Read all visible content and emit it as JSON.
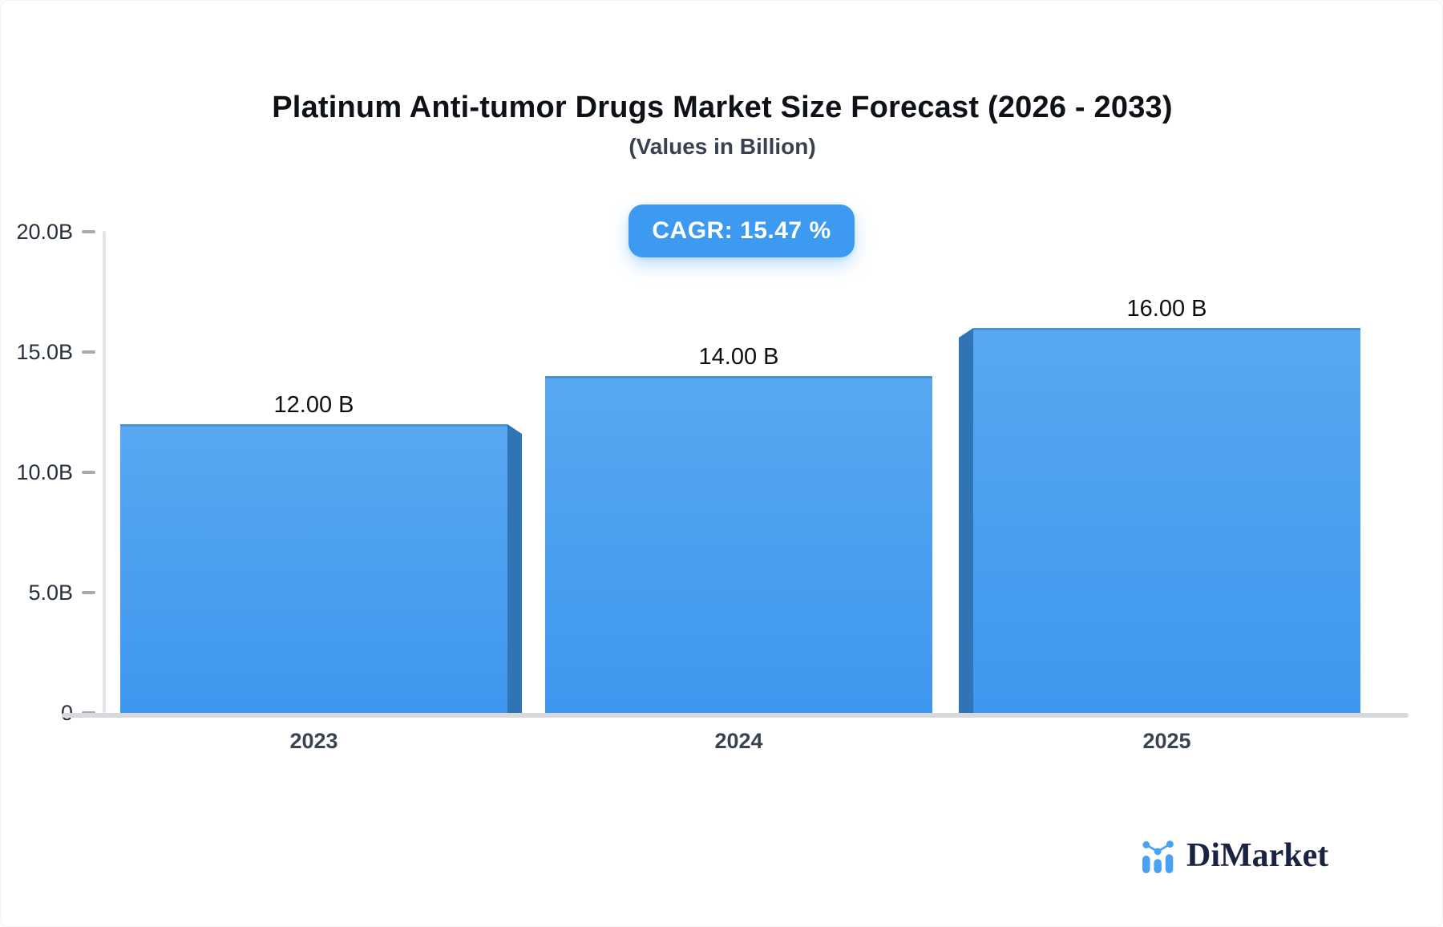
{
  "chart_data": {
    "type": "bar",
    "title": "Platinum Anti-tumor Drugs Market Size Forecast (2026 - 2033)",
    "subtitle": "(Values in Billion)",
    "cagr_label": "CAGR: 15.47 %",
    "cagr_percent": 15.47,
    "categories": [
      "2023",
      "2024",
      "2025"
    ],
    "values": [
      12.0,
      14.0,
      16.0
    ],
    "value_labels": [
      "12.00 B",
      "14.00 B",
      "16.00 B"
    ],
    "ylim": [
      0,
      20
    ],
    "y_ticks": [
      {
        "value": 20,
        "label": "20.0B"
      },
      {
        "value": 15,
        "label": "15.0B"
      },
      {
        "value": 10,
        "label": "10.0B"
      },
      {
        "value": 5,
        "label": "5.0B"
      },
      {
        "value": 0,
        "label": "0"
      }
    ],
    "grid": "off",
    "legend": "none",
    "colors": {
      "bar_face_top": "#58a7f1",
      "bar_face_bottom": "#3e97ef",
      "bar_top_edge": "#4891dc",
      "bar_side": "#3174b6",
      "badge_bg": "#3c9af1",
      "badge_text": "#ffffff",
      "axis_line": "#e0e3e7",
      "baseline": "#d7d9dc",
      "tick": "#a5abb4",
      "axis_label": "#28303e",
      "brand_navy": "#1a2340",
      "brand_blue": "#49a1f4"
    }
  },
  "footer": {
    "brand": "DiMarket"
  }
}
